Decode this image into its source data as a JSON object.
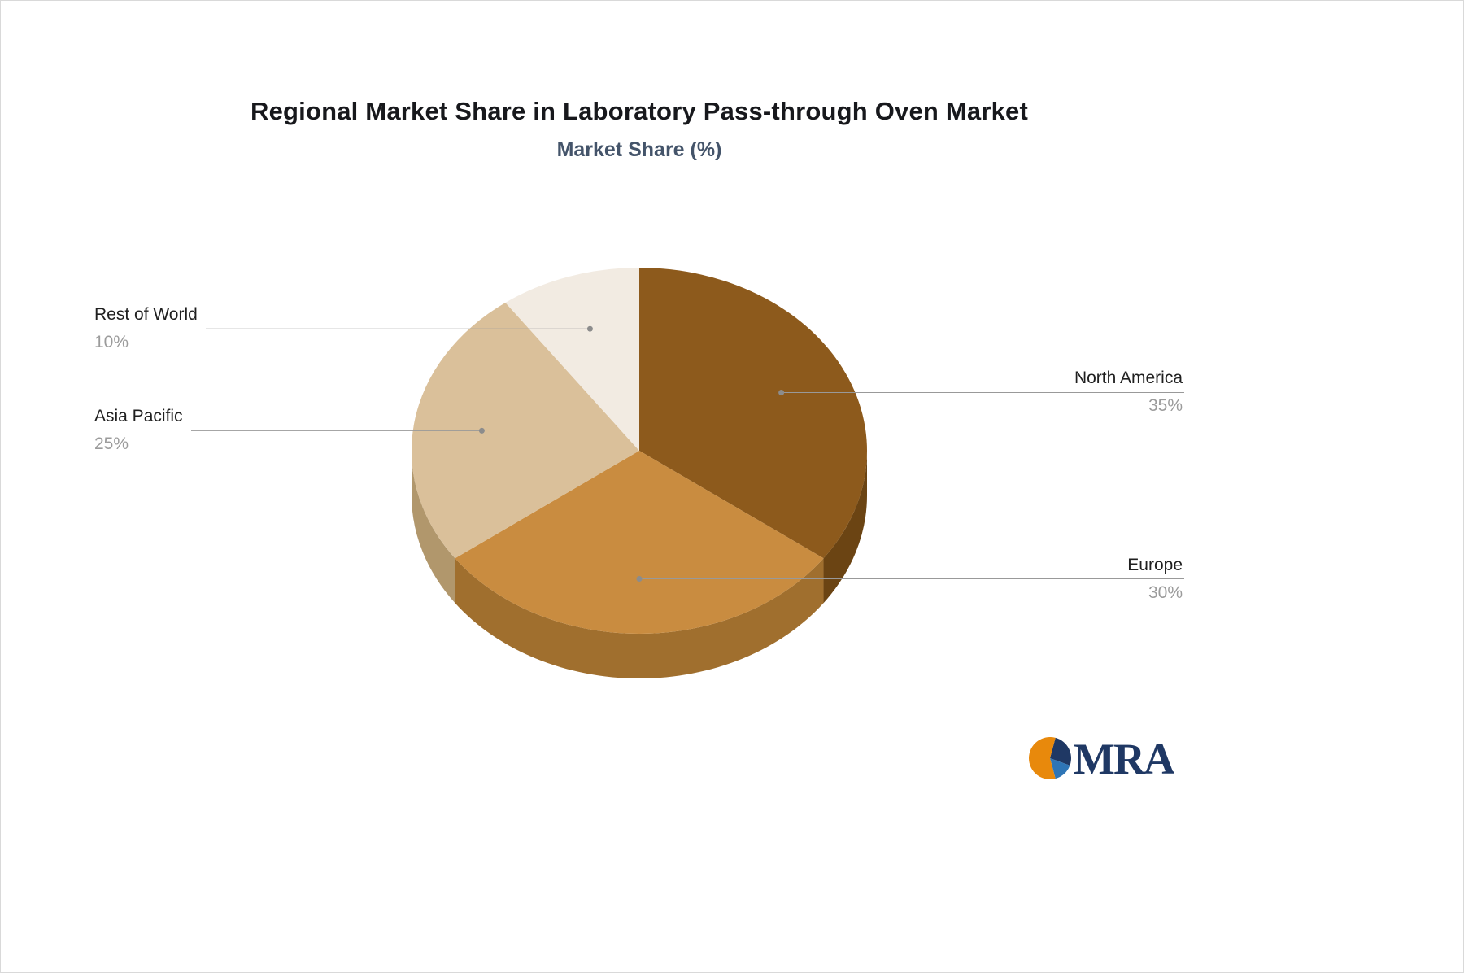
{
  "page": {
    "title": "Regional Market Share in Laboratory Pass-through Oven Market",
    "subtitle": "Market Share (%)"
  },
  "chart_data": {
    "type": "pie",
    "title": "Regional Market Share in Laboratory Pass-through Oven Market",
    "subtitle": "Market Share (%)",
    "unit": "%",
    "style": "3d",
    "start_angle_deg": 0,
    "direction": "clockwise",
    "slices": [
      {
        "label": "North America",
        "value": 35,
        "display": "35%",
        "color": "#8d5a1c",
        "side_color": "#6b4413"
      },
      {
        "label": "Europe",
        "value": 30,
        "display": "30%",
        "color": "#c98c40",
        "side_color": "#a06f2e"
      },
      {
        "label": "Asia Pacific",
        "value": 25,
        "display": "25%",
        "color": "#dac09a",
        "side_color": "#b1976c"
      },
      {
        "label": "Rest of World",
        "value": 10,
        "display": "10%",
        "color": "#f2ebe2",
        "side_color": "#cec4b6"
      }
    ],
    "label_name_color": "#1f1f1f",
    "label_value_color": "#9b9b9b",
    "leader_line_color": "#999999",
    "leader_dot_color": "#8c8c8c",
    "legend": "off",
    "grid": "off"
  },
  "logo": {
    "text": "MRA",
    "colors": {
      "orange": "#e8890c",
      "navy": "#1f3864",
      "blue": "#2e75b6"
    }
  }
}
